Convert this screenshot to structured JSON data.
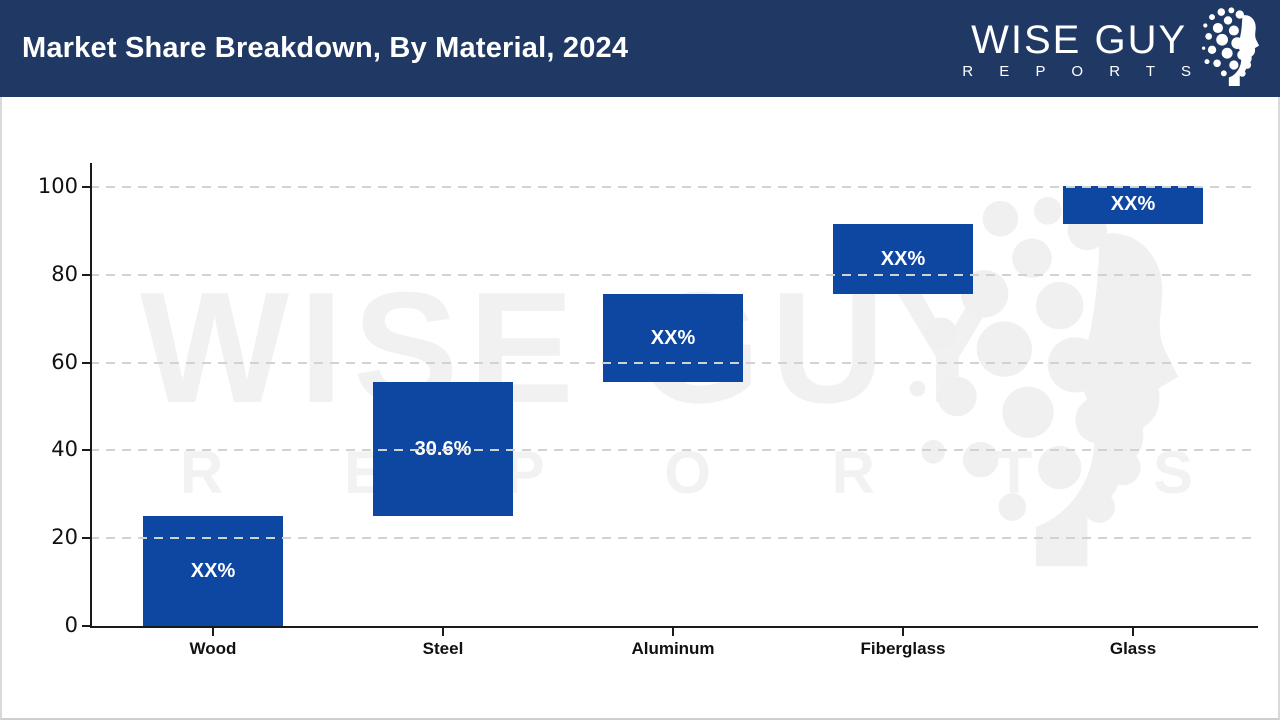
{
  "header": {
    "title": "Market Share Breakdown, By Material, 2024",
    "bg_color": "#1f3864",
    "brand": {
      "line1": "WISE GUY",
      "line2": "R E P O R T S"
    }
  },
  "watermark": {
    "line1": "WISE GUY",
    "line2": "R E P O R T S"
  },
  "chart_data": {
    "type": "bar",
    "subtype": "floating_waterfall_columns",
    "title": "Market Share Breakdown, By Material, 2024",
    "categories": [
      "Wood",
      "Steel",
      "Aluminum",
      "Fiberglass",
      "Glass"
    ],
    "segments": [
      {
        "category": "Wood",
        "start": 0,
        "end": 25,
        "label": "XX%"
      },
      {
        "category": "Steel",
        "start": 25,
        "end": 55.6,
        "label": "30.6%"
      },
      {
        "category": "Aluminum",
        "start": 55.6,
        "end": 75.6,
        "label": "XX%"
      },
      {
        "category": "Fiberglass",
        "start": 75.6,
        "end": 91.5,
        "label": "XX%"
      },
      {
        "category": "Glass",
        "start": 91.5,
        "end": 100.3,
        "label": "XX%"
      }
    ],
    "ylim": [
      0,
      100
    ],
    "yticks": [
      0,
      20,
      40,
      60,
      80,
      100
    ],
    "grid": "horizontal-dashed-over-bars",
    "bar_color": "#0d47a1",
    "bar_label_color": "#ffffff",
    "axis_color": "#1a1a1a"
  }
}
